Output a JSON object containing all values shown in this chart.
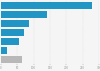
{
  "values": [
    280,
    140,
    85,
    70,
    55,
    18,
    65
  ],
  "colors": [
    "#2196c4",
    "#2196c4",
    "#2196c4",
    "#2196c4",
    "#2196c4",
    "#2196c4",
    "#b8b8b8"
  ],
  "xlim": [
    0,
    300
  ],
  "background_color": "#f5f5f5",
  "tick_color": "#999999",
  "gridline_color": "#dddddd",
  "bar_height": 0.75
}
